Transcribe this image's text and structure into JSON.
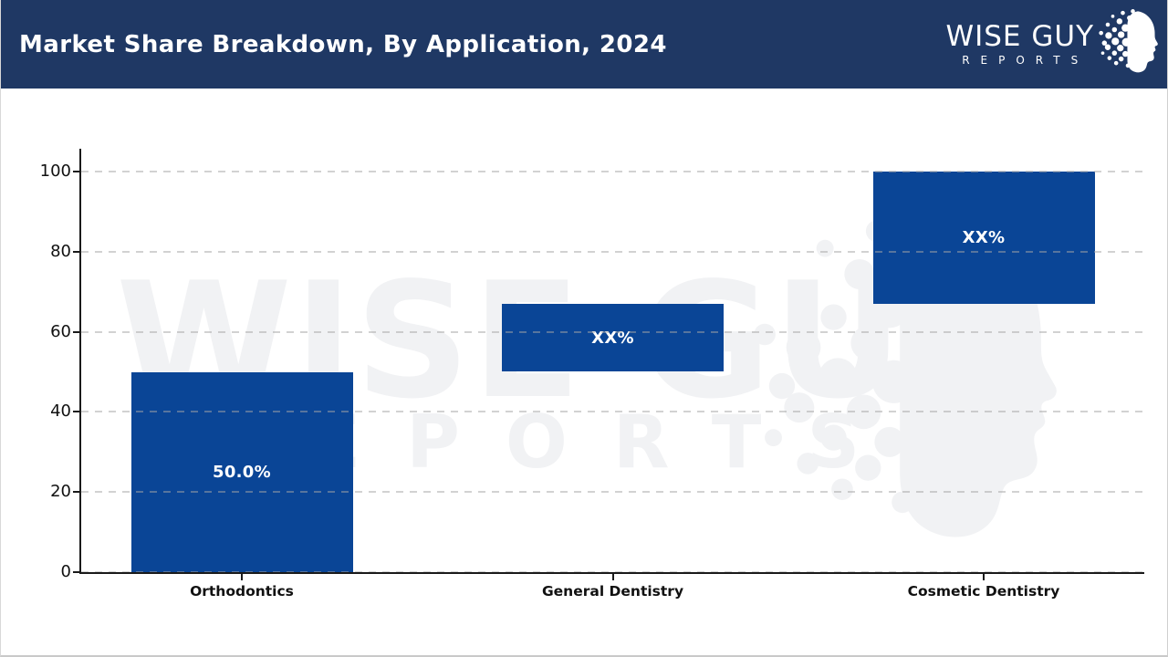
{
  "header": {
    "title": "Market Share Breakdown, By Application, 2024",
    "bg_color": "#1f3864",
    "logo": {
      "line1": "WISE GUY",
      "line2": "REPORTS"
    }
  },
  "watermark": {
    "line1": "WISE GUY",
    "line2": "REPORTS"
  },
  "chart_data": {
    "type": "bar",
    "variant": "floating-waterfall",
    "title": "Market Share Breakdown, By Application, 2024",
    "categories": [
      "Orthodontics",
      "General Dentistry",
      "Cosmetic Dentistry"
    ],
    "bars": [
      {
        "category": "Orthodontics",
        "from": 0,
        "to": 50,
        "label": "50.0%"
      },
      {
        "category": "General Dentistry",
        "from": 50,
        "to": 67,
        "label": "XX%"
      },
      {
        "category": "Cosmetic Dentistry",
        "from": 67,
        "to": 100,
        "label": "XX%"
      }
    ],
    "yticks": [
      0,
      20,
      40,
      60,
      80,
      100
    ],
    "ylim": [
      0,
      105
    ],
    "bar_color": "#0a4596",
    "grid": "horizontal-dashed",
    "legend_position": "none",
    "xlabel": "",
    "ylabel": ""
  }
}
